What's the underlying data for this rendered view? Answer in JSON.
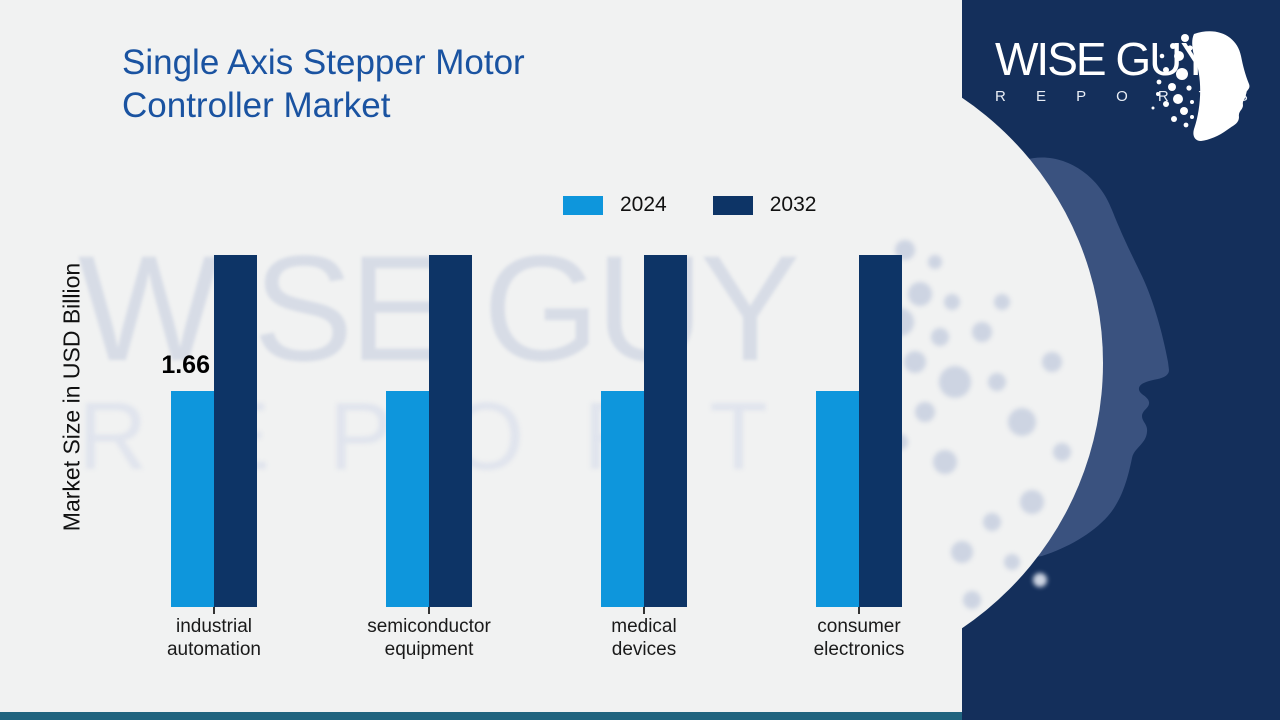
{
  "page": {
    "background_color": "#f1f2f2",
    "bottom_bar_color": "#20647f"
  },
  "header": {
    "title_line1": "Single Axis Stepper Motor",
    "title_line2": "Controller Market",
    "title_color": "#1a53a1"
  },
  "brand": {
    "name": "WISE GUY",
    "sub": "R E P O R T S",
    "block_color": "#142f5b",
    "face_silhouette_color": "#3a527f",
    "head_icon": "dotted-head-profile"
  },
  "watermark": {
    "line1": "WISE GUY",
    "line2": "R E P O R T S"
  },
  "chart_data": {
    "type": "bar",
    "title": "Single Axis Stepper Motor Controller Market",
    "ylabel": "Market Size in USD Billion",
    "xlabel": "",
    "categories": [
      "industrial automation",
      "semiconductor equipment",
      "medical devices",
      "consumer electronics"
    ],
    "category_lines": [
      [
        "industrial",
        "automation"
      ],
      [
        "semiconductor",
        "equipment"
      ],
      [
        "medical",
        "devices"
      ],
      [
        "consumer",
        "electronics"
      ]
    ],
    "series": [
      {
        "name": "2024",
        "color": "#0e96dc",
        "values": [
          1.66,
          1.66,
          1.66,
          1.66
        ]
      },
      {
        "name": "2032",
        "color": "#0d3466",
        "values": [
          2.7,
          2.7,
          2.7,
          2.7
        ]
      }
    ],
    "value_labels": [
      {
        "series_index": 0,
        "category_index": 0,
        "text": "1.66"
      }
    ],
    "ylim": [
      0,
      2.8
    ],
    "grid": false,
    "axis_line": false,
    "legend_position": "top-center"
  }
}
